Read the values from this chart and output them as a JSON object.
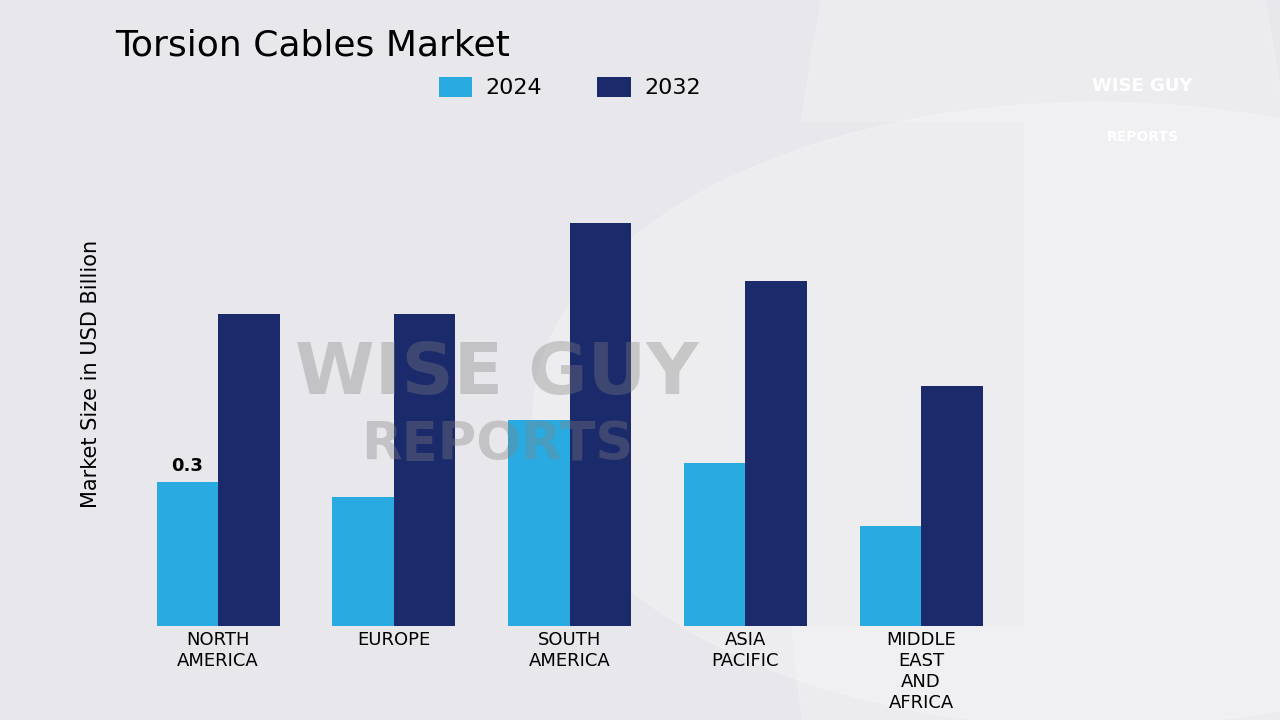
{
  "title": "Torsion Cables Market",
  "ylabel": "Market Size in USD Billion",
  "categories": [
    "NORTH\nAMERICA",
    "EUROPE",
    "SOUTH\nAMERICA",
    "ASIA\nPACIFIC",
    "MIDDLE\nEAST\nAND\nAFRICA"
  ],
  "values_2024": [
    0.3,
    0.27,
    0.43,
    0.34,
    0.21
  ],
  "values_2032": [
    0.65,
    0.65,
    0.84,
    0.72,
    0.5
  ],
  "color_2024": "#29ABE2",
  "color_2032": "#1B2A6B",
  "annotation_value": "0.3",
  "background_color": "#E8E8EC",
  "title_color": "#000000",
  "bar_width": 0.35,
  "legend_labels": [
    "2024",
    "2032"
  ],
  "title_fontsize": 26,
  "ylabel_fontsize": 15,
  "tick_fontsize": 13,
  "legend_fontsize": 16,
  "right_panel_color": "#1A2E6E",
  "wiseguy_text_color": "#C8C8D0",
  "wiseguy_alpha": 0.35
}
